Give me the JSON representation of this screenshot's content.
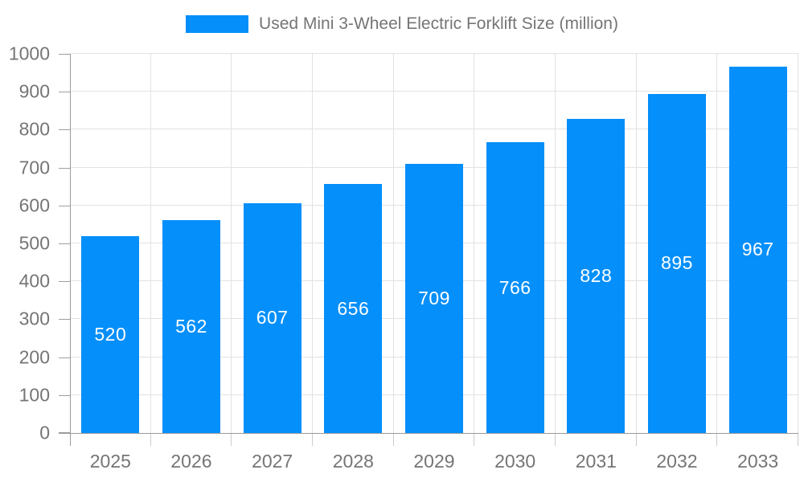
{
  "figure": {
    "legend": {
      "swatch_color": "#058ffa",
      "label": "Used Mini 3-Wheel Electric Forklift Size (million)"
    }
  },
  "chart_data": {
    "type": "bar",
    "title": "Used Mini 3-Wheel Electric Forklift Size (million)",
    "categories": [
      "2025",
      "2026",
      "2027",
      "2028",
      "2029",
      "2030",
      "2031",
      "2032",
      "2033"
    ],
    "values": [
      520,
      562,
      607,
      656,
      709,
      766,
      828,
      895,
      967
    ],
    "xlabel": "",
    "ylabel": "",
    "ylim": [
      0,
      1000
    ],
    "ytick_interval": 100,
    "ytick_labels": [
      "0",
      "100",
      "200",
      "300",
      "400",
      "500",
      "600",
      "700",
      "800",
      "900",
      "1000"
    ],
    "bar_color": "#058ffa",
    "bar_label_color": "#ffffff",
    "grid": true,
    "legend_position": "top-center",
    "show_bar_labels": true
  }
}
